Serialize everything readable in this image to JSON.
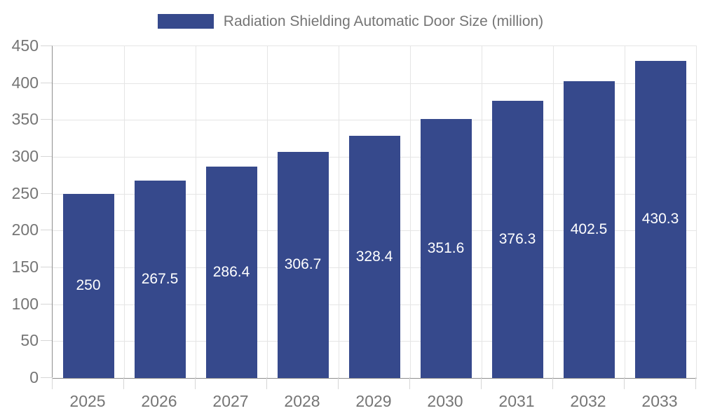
{
  "legend": {
    "label": "Radiation Shielding Automatic Door Size (million)"
  },
  "chart_data": {
    "type": "bar",
    "title": "Radiation Shielding Automatic Door Size (million)",
    "categories": [
      "2025",
      "2026",
      "2027",
      "2028",
      "2029",
      "2030",
      "2031",
      "2032",
      "2033"
    ],
    "values": [
      250,
      267.5,
      286.4,
      306.7,
      328.4,
      351.6,
      376.3,
      402.5,
      430.3
    ],
    "value_labels": [
      "250",
      "267.5",
      "286.4",
      "306.7",
      "328.4",
      "351.6",
      "376.3",
      "402.5",
      "430.3"
    ],
    "xlabel": "",
    "ylabel": "",
    "ylim": [
      0,
      450
    ],
    "ytick_step": 50,
    "ytick_labels": [
      "0",
      "50",
      "100",
      "150",
      "200",
      "250",
      "300",
      "350",
      "400",
      "450"
    ],
    "grid": true,
    "legend_position": "top-center",
    "colors": {
      "bar": "#36498C",
      "value_label": "#ffffff",
      "tick_label": "#757575",
      "legend_text": "#757575",
      "axis_line": "#8e8e8e",
      "grid_line": "#e5e5e5",
      "tick_mark": "#d6d6d6",
      "background": "#ffffff"
    }
  }
}
